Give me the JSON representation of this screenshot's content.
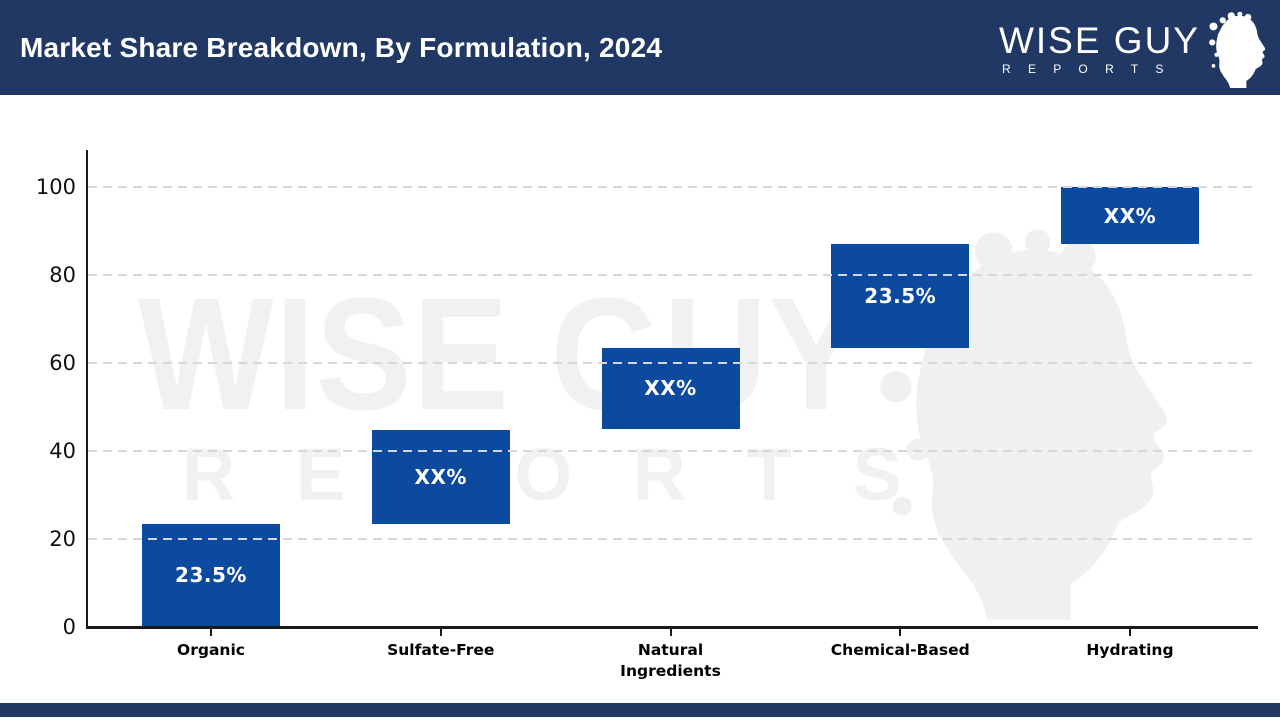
{
  "header": {
    "title": "Market Share Breakdown, By Formulation, 2024",
    "logo": {
      "line1": "WISE GUY",
      "line2": "R E P O R T S"
    }
  },
  "watermark": {
    "line1": "WISE GUY",
    "line2": "R E P O R T S"
  },
  "chart_data": {
    "type": "bar",
    "subtype": "floating-segment-waterfall",
    "title": "Market Share Breakdown, By Formulation, 2024",
    "categories": [
      "Organic",
      "Sulfate-Free",
      "Natural Ingredients",
      "Chemical-Based",
      "Hydrating"
    ],
    "xlabel_lines": [
      [
        "Organic"
      ],
      [
        "Sulfate-Free"
      ],
      [
        "Natural",
        "Ingredients"
      ],
      [
        "Chemical-Based"
      ],
      [
        "Hydrating"
      ]
    ],
    "bars": [
      {
        "category": "Organic",
        "start": 0,
        "end": 23.5,
        "label": "23.5%"
      },
      {
        "category": "Sulfate-Free",
        "start": 23.5,
        "end": 44.8,
        "label": "XX%"
      },
      {
        "category": "Natural Ingredients",
        "start": 45,
        "end": 63.5,
        "label": "XX%"
      },
      {
        "category": "Chemical-Based",
        "start": 63.5,
        "end": 87,
        "label": "23.5%"
      },
      {
        "category": "Hydrating",
        "start": 87,
        "end": 100,
        "label": "XX%"
      }
    ],
    "xlabel": "",
    "ylabel": "",
    "ylim": [
      0,
      100
    ],
    "yticks": [
      0,
      20,
      40,
      60,
      80,
      100
    ],
    "grid": "horizontal-dashed",
    "legend": "none"
  },
  "colors": {
    "header_bg": "#203863",
    "footer_bg": "#203863",
    "bar_fill": "#0b4a9f",
    "bar_label": "#ffffff",
    "grid": "#d7d7d7",
    "axis": "#1a1a1a",
    "tick_label": "#111111",
    "watermark": "#f1f1f1",
    "title_text": "#ffffff"
  }
}
